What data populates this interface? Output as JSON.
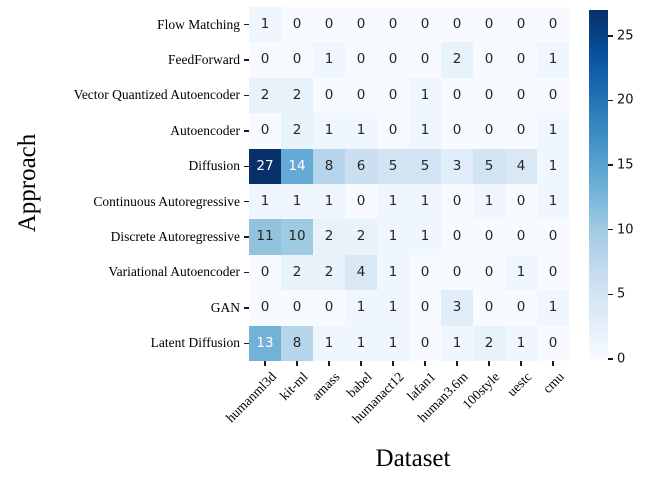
{
  "figure": {
    "background": "#ffffff",
    "annotation_text_dark": "#262626",
    "annotation_text_light": "#ffffff",
    "tick_color": "#1a1a1a"
  },
  "chart_data": {
    "type": "heatmap",
    "title": "",
    "xlabel": "Dataset",
    "ylabel": "Approach",
    "rows": [
      "Flow Matching",
      "FeedForward",
      "Vector Quantized Autoencoder",
      "Autoencoder",
      "Diffusion",
      "Continuous Autoregressive",
      "Discrete Autoregressive",
      "Variational Autoencoder",
      "GAN",
      "Latent Diffusion"
    ],
    "columns": [
      "humanml3d",
      "kit-ml",
      "amass",
      "babel",
      "humanact12",
      "lafan1",
      "human3.6m",
      "100style",
      "uestc",
      "cmu"
    ],
    "values": [
      [
        1,
        0,
        0,
        0,
        0,
        0,
        0,
        0,
        0,
        0
      ],
      [
        0,
        0,
        1,
        0,
        0,
        0,
        2,
        0,
        0,
        1
      ],
      [
        2,
        2,
        0,
        0,
        0,
        1,
        0,
        0,
        0,
        0
      ],
      [
        0,
        2,
        1,
        1,
        0,
        1,
        0,
        0,
        0,
        1
      ],
      [
        27,
        14,
        8,
        6,
        5,
        5,
        3,
        5,
        4,
        1
      ],
      [
        1,
        1,
        1,
        0,
        1,
        1,
        0,
        1,
        0,
        1
      ],
      [
        11,
        10,
        2,
        2,
        1,
        1,
        0,
        0,
        0,
        0
      ],
      [
        0,
        2,
        2,
        4,
        1,
        0,
        0,
        0,
        1,
        0
      ],
      [
        0,
        0,
        0,
        1,
        1,
        0,
        3,
        0,
        0,
        1
      ],
      [
        13,
        8,
        1,
        1,
        1,
        0,
        1,
        2,
        1,
        0
      ]
    ],
    "annotated": true,
    "colormap": "Blues",
    "colormap_stops": [
      "#f7fbff",
      "#deebf7",
      "#c6dbef",
      "#9ecae1",
      "#6baed6",
      "#4292c6",
      "#2171b5",
      "#08519c",
      "#08306b"
    ],
    "vmin": 0,
    "vmax": 27,
    "colorbar_ticks": [
      0,
      5,
      10,
      15,
      20,
      25
    ],
    "colorbar_position": "right",
    "grid": false
  }
}
